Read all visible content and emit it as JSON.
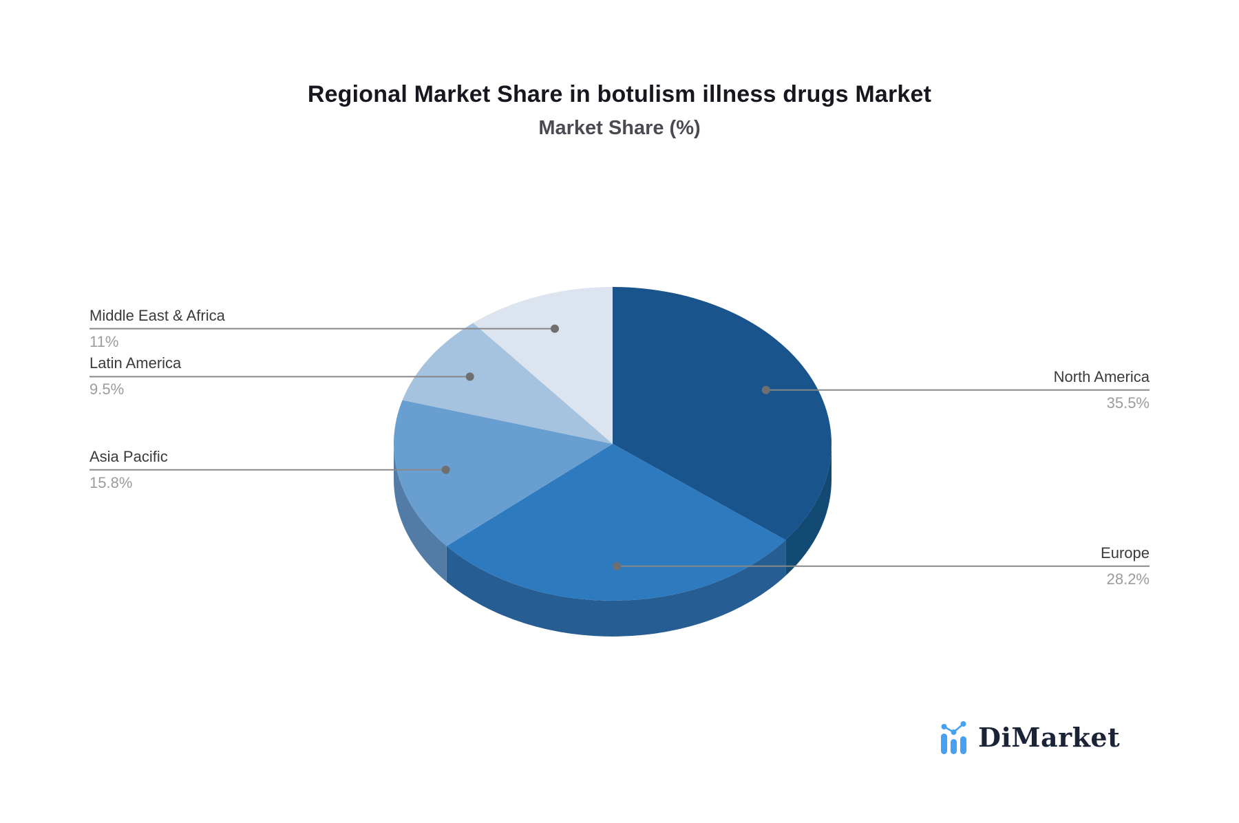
{
  "chart_data": {
    "type": "pie",
    "title": "Regional Market Share in botulism illness drugs Market",
    "subtitle": "Market Share (%)",
    "unit": "%",
    "style": "3d-pie",
    "start_angle": "12-o-clock",
    "direction": "clockwise",
    "legend_position": "leader-line-labels",
    "slices": [
      {
        "name": "North America",
        "value": 35.5,
        "pct_label": "35.5%",
        "color": "#19558c",
        "side_color": "#134a73",
        "label_side": "right"
      },
      {
        "name": "Europe",
        "value": 28.2,
        "pct_label": "28.2%",
        "color": "#2e7abf",
        "side_color": "#265e94",
        "label_side": "right"
      },
      {
        "name": "Asia Pacific",
        "value": 15.8,
        "pct_label": "15.8%",
        "color": "#699fd0",
        "side_color": "#527ca6",
        "label_side": "left"
      },
      {
        "name": "Latin America",
        "value": 9.5,
        "pct_label": "9.5%",
        "color": "#a5c2de",
        "label_side": "left"
      },
      {
        "name": "Middle East & Africa",
        "value": 11,
        "pct_label": "11%",
        "color": "#dce4ef",
        "label_side": "left"
      }
    ],
    "colors": {
      "leader_line": "#878787",
      "leader_dot": "#6f6f6f",
      "label_text": "#3a3a3a",
      "pct_text": "#9b9b9b",
      "background": "#ffffff"
    }
  },
  "branding": {
    "logo_text": "DiMarket",
    "logo_text_color": "#1b2437",
    "logo_accent_color": "#47a0f0"
  }
}
